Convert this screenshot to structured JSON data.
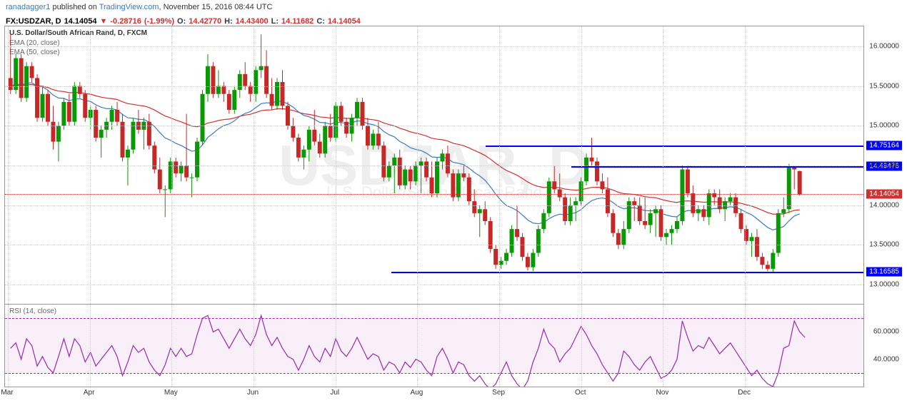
{
  "header": {
    "author": "ranadagger1",
    "middle": " published on ",
    "site": "TradingView.com",
    "dateTail": ", November 15, 2016 08:44 UTC"
  },
  "ticker": {
    "symbol": "FX:USDZAR, D",
    "price": "14.14054",
    "change": "-0.28716",
    "changePct": "(-1.99%)",
    "O": "14.42770",
    "H": "14.43400",
    "L": "14.11682",
    "C": "14.14054"
  },
  "mainChart": {
    "title": "U.S. Dollar/South African Rand, D, FXCM",
    "ema1": "EMA (20, close)",
    "ema2": "EMA (50, close)",
    "watermark": "USDZAR, D",
    "watermarkSub": "U.S. Dollar/South African Rand",
    "yTicks": [
      13.0,
      13.5,
      14.0,
      14.5,
      15.0,
      15.5,
      16.0
    ],
    "ylim": [
      12.75,
      16.25
    ],
    "currentPrice": 14.14054,
    "hlines": [
      {
        "value": 14.75164,
        "startX": 0.56
      },
      {
        "value": 14.49476,
        "startX": 0.66
      },
      {
        "value": 13.16585,
        "startX": 0.45
      }
    ],
    "colors": {
      "up": "#089904",
      "down": "#c62828",
      "ema20": "#3b7bbf",
      "ema50": "#d32f2f"
    },
    "candles": [
      {
        "o": 15.6,
        "h": 16.15,
        "l": 15.4,
        "c": 15.45
      },
      {
        "o": 15.45,
        "h": 15.9,
        "l": 15.4,
        "c": 15.85
      },
      {
        "o": 15.85,
        "h": 15.9,
        "l": 15.3,
        "c": 15.35
      },
      {
        "o": 15.35,
        "h": 15.8,
        "l": 15.3,
        "c": 15.75
      },
      {
        "o": 15.75,
        "h": 15.8,
        "l": 15.55,
        "c": 15.6
      },
      {
        "o": 15.6,
        "h": 15.65,
        "l": 15.05,
        "c": 15.1
      },
      {
        "o": 15.1,
        "h": 15.5,
        "l": 15.05,
        "c": 15.4
      },
      {
        "o": 15.4,
        "h": 15.45,
        "l": 15.0,
        "c": 15.05
      },
      {
        "o": 15.05,
        "h": 15.25,
        "l": 14.7,
        "c": 14.8
      },
      {
        "o": 14.8,
        "h": 15.05,
        "l": 14.55,
        "c": 15.0
      },
      {
        "o": 15.0,
        "h": 15.35,
        "l": 14.95,
        "c": 15.3
      },
      {
        "o": 15.3,
        "h": 15.4,
        "l": 15.0,
        "c": 15.05
      },
      {
        "o": 15.05,
        "h": 15.55,
        "l": 15.0,
        "c": 15.5
      },
      {
        "o": 15.5,
        "h": 15.55,
        "l": 15.35,
        "c": 15.4
      },
      {
        "o": 15.4,
        "h": 15.45,
        "l": 15.05,
        "c": 15.1
      },
      {
        "o": 15.1,
        "h": 15.25,
        "l": 14.95,
        "c": 15.2
      },
      {
        "o": 15.2,
        "h": 15.25,
        "l": 14.8,
        "c": 14.85
      },
      {
        "o": 14.85,
        "h": 15.0,
        "l": 14.6,
        "c": 14.95
      },
      {
        "o": 14.95,
        "h": 15.1,
        "l": 14.85,
        "c": 15.05
      },
      {
        "o": 15.05,
        "h": 15.25,
        "l": 14.95,
        "c": 15.2
      },
      {
        "o": 15.2,
        "h": 15.3,
        "l": 15.0,
        "c": 15.05
      },
      {
        "o": 15.05,
        "h": 15.15,
        "l": 14.55,
        "c": 14.6
      },
      {
        "o": 14.6,
        "h": 14.75,
        "l": 14.25,
        "c": 14.7
      },
      {
        "o": 14.7,
        "h": 15.1,
        "l": 14.65,
        "c": 15.05
      },
      {
        "o": 15.05,
        "h": 15.2,
        "l": 14.9,
        "c": 14.95
      },
      {
        "o": 14.95,
        "h": 15.1,
        "l": 14.7,
        "c": 15.05
      },
      {
        "o": 15.05,
        "h": 15.15,
        "l": 14.7,
        "c": 14.75
      },
      {
        "o": 14.75,
        "h": 14.8,
        "l": 14.4,
        "c": 14.45
      },
      {
        "o": 14.45,
        "h": 14.6,
        "l": 14.15,
        "c": 14.2
      },
      {
        "o": 14.2,
        "h": 14.25,
        "l": 13.85,
        "c": 14.2
      },
      {
        "o": 14.2,
        "h": 14.6,
        "l": 14.15,
        "c": 14.55
      },
      {
        "o": 14.55,
        "h": 14.6,
        "l": 14.35,
        "c": 14.4
      },
      {
        "o": 14.4,
        "h": 14.55,
        "l": 14.3,
        "c": 14.5
      },
      {
        "o": 14.5,
        "h": 15.15,
        "l": 14.3,
        "c": 14.35
      },
      {
        "o": 14.35,
        "h": 14.4,
        "l": 14.1,
        "c": 14.35
      },
      {
        "o": 14.35,
        "h": 14.85,
        "l": 14.3,
        "c": 14.8
      },
      {
        "o": 14.8,
        "h": 15.45,
        "l": 14.75,
        "c": 15.4
      },
      {
        "o": 15.4,
        "h": 15.9,
        "l": 15.3,
        "c": 15.75
      },
      {
        "o": 15.75,
        "h": 15.8,
        "l": 15.35,
        "c": 15.4
      },
      {
        "o": 15.4,
        "h": 15.7,
        "l": 15.35,
        "c": 15.5
      },
      {
        "o": 15.5,
        "h": 15.55,
        "l": 15.3,
        "c": 15.4
      },
      {
        "o": 15.4,
        "h": 15.45,
        "l": 15.15,
        "c": 15.2
      },
      {
        "o": 15.2,
        "h": 15.5,
        "l": 15.15,
        "c": 15.45
      },
      {
        "o": 15.45,
        "h": 15.7,
        "l": 15.35,
        "c": 15.65
      },
      {
        "o": 15.65,
        "h": 15.8,
        "l": 15.45,
        "c": 15.5
      },
      {
        "o": 15.5,
        "h": 15.55,
        "l": 15.3,
        "c": 15.4
      },
      {
        "o": 15.4,
        "h": 15.75,
        "l": 15.3,
        "c": 15.7
      },
      {
        "o": 15.7,
        "h": 16.15,
        "l": 15.6,
        "c": 15.75
      },
      {
        "o": 15.75,
        "h": 15.95,
        "l": 15.35,
        "c": 15.4
      },
      {
        "o": 15.4,
        "h": 15.6,
        "l": 15.2,
        "c": 15.25
      },
      {
        "o": 15.25,
        "h": 15.6,
        "l": 15.2,
        "c": 15.55
      },
      {
        "o": 15.55,
        "h": 15.7,
        "l": 15.2,
        "c": 15.25
      },
      {
        "o": 15.25,
        "h": 15.3,
        "l": 14.95,
        "c": 15.0
      },
      {
        "o": 15.0,
        "h": 15.1,
        "l": 14.8,
        "c": 14.85
      },
      {
        "o": 14.85,
        "h": 14.9,
        "l": 14.55,
        "c": 14.6
      },
      {
        "o": 14.6,
        "h": 14.75,
        "l": 14.45,
        "c": 14.7
      },
      {
        "o": 14.7,
        "h": 15.0,
        "l": 14.55,
        "c": 14.95
      },
      {
        "o": 14.95,
        "h": 15.2,
        "l": 14.75,
        "c": 14.8
      },
      {
        "o": 14.8,
        "h": 14.9,
        "l": 14.6,
        "c": 14.65
      },
      {
        "o": 14.65,
        "h": 15.05,
        "l": 14.6,
        "c": 15.0
      },
      {
        "o": 15.0,
        "h": 15.15,
        "l": 14.8,
        "c": 14.85
      },
      {
        "o": 14.85,
        "h": 15.3,
        "l": 14.8,
        "c": 15.25
      },
      {
        "o": 15.25,
        "h": 15.3,
        "l": 15.0,
        "c": 15.05
      },
      {
        "o": 15.05,
        "h": 15.1,
        "l": 14.85,
        "c": 14.9
      },
      {
        "o": 14.9,
        "h": 15.15,
        "l": 14.8,
        "c": 15.1
      },
      {
        "o": 15.1,
        "h": 15.35,
        "l": 15.0,
        "c": 15.3
      },
      {
        "o": 15.3,
        "h": 15.35,
        "l": 14.95,
        "c": 15.0
      },
      {
        "o": 15.0,
        "h": 15.1,
        "l": 14.7,
        "c": 14.75
      },
      {
        "o": 14.75,
        "h": 14.95,
        "l": 14.7,
        "c": 14.9
      },
      {
        "o": 14.9,
        "h": 15.05,
        "l": 14.7,
        "c": 14.75
      },
      {
        "o": 14.75,
        "h": 14.8,
        "l": 14.3,
        "c": 14.35
      },
      {
        "o": 14.35,
        "h": 14.55,
        "l": 14.3,
        "c": 14.5
      },
      {
        "o": 14.5,
        "h": 14.65,
        "l": 14.15,
        "c": 14.6
      },
      {
        "o": 14.6,
        "h": 14.7,
        "l": 14.2,
        "c": 14.25
      },
      {
        "o": 14.25,
        "h": 14.5,
        "l": 14.2,
        "c": 14.45
      },
      {
        "o": 14.45,
        "h": 14.5,
        "l": 14.2,
        "c": 14.3
      },
      {
        "o": 14.3,
        "h": 14.55,
        "l": 14.25,
        "c": 14.5
      },
      {
        "o": 14.5,
        "h": 14.6,
        "l": 14.15,
        "c": 14.55
      },
      {
        "o": 14.55,
        "h": 14.6,
        "l": 14.3,
        "c": 14.35
      },
      {
        "o": 14.35,
        "h": 14.55,
        "l": 14.1,
        "c": 14.15
      },
      {
        "o": 14.15,
        "h": 14.6,
        "l": 14.1,
        "c": 14.55
      },
      {
        "o": 14.55,
        "h": 14.7,
        "l": 14.45,
        "c": 14.65
      },
      {
        "o": 14.65,
        "h": 14.75,
        "l": 14.35,
        "c": 14.4
      },
      {
        "o": 14.4,
        "h": 14.45,
        "l": 14.05,
        "c": 14.1
      },
      {
        "o": 14.1,
        "h": 14.45,
        "l": 14.05,
        "c": 14.4
      },
      {
        "o": 14.4,
        "h": 14.5,
        "l": 14.3,
        "c": 14.35
      },
      {
        "o": 14.35,
        "h": 14.4,
        "l": 14.0,
        "c": 14.05
      },
      {
        "o": 14.05,
        "h": 14.2,
        "l": 13.85,
        "c": 13.9
      },
      {
        "o": 13.9,
        "h": 14.0,
        "l": 13.6,
        "c": 13.95
      },
      {
        "o": 13.95,
        "h": 14.05,
        "l": 13.75,
        "c": 13.8
      },
      {
        "o": 13.8,
        "h": 13.85,
        "l": 13.4,
        "c": 13.45
      },
      {
        "o": 13.45,
        "h": 13.5,
        "l": 13.2,
        "c": 13.25
      },
      {
        "o": 13.25,
        "h": 13.35,
        "l": 13.2,
        "c": 13.3
      },
      {
        "o": 13.3,
        "h": 13.45,
        "l": 13.25,
        "c": 13.4
      },
      {
        "o": 13.4,
        "h": 13.75,
        "l": 13.35,
        "c": 13.7
      },
      {
        "o": 13.7,
        "h": 14.0,
        "l": 13.55,
        "c": 13.6
      },
      {
        "o": 13.6,
        "h": 13.65,
        "l": 13.3,
        "c": 13.35
      },
      {
        "o": 13.35,
        "h": 13.4,
        "l": 13.18,
        "c": 13.22
      },
      {
        "o": 13.22,
        "h": 13.45,
        "l": 13.17,
        "c": 13.4
      },
      {
        "o": 13.4,
        "h": 13.75,
        "l": 13.35,
        "c": 13.7
      },
      {
        "o": 13.7,
        "h": 13.95,
        "l": 13.65,
        "c": 13.9
      },
      {
        "o": 13.9,
        "h": 14.35,
        "l": 13.85,
        "c": 14.3
      },
      {
        "o": 14.3,
        "h": 14.5,
        "l": 14.15,
        "c": 14.2
      },
      {
        "o": 14.2,
        "h": 14.4,
        "l": 14.05,
        "c": 14.1
      },
      {
        "o": 14.1,
        "h": 14.15,
        "l": 13.75,
        "c": 13.8
      },
      {
        "o": 13.8,
        "h": 14.1,
        "l": 13.75,
        "c": 14.0
      },
      {
        "o": 14.0,
        "h": 14.1,
        "l": 13.8,
        "c": 14.05
      },
      {
        "o": 14.05,
        "h": 14.35,
        "l": 14.0,
        "c": 14.3
      },
      {
        "o": 14.3,
        "h": 14.65,
        "l": 14.25,
        "c": 14.6
      },
      {
        "o": 14.6,
        "h": 14.85,
        "l": 14.5,
        "c": 14.55
      },
      {
        "o": 14.55,
        "h": 14.6,
        "l": 14.25,
        "c": 14.3
      },
      {
        "o": 14.3,
        "h": 14.4,
        "l": 14.15,
        "c": 14.2
      },
      {
        "o": 14.2,
        "h": 14.35,
        "l": 13.85,
        "c": 13.9
      },
      {
        "o": 13.9,
        "h": 13.95,
        "l": 13.6,
        "c": 13.65
      },
      {
        "o": 13.65,
        "h": 13.7,
        "l": 13.45,
        "c": 13.5
      },
      {
        "o": 13.5,
        "h": 13.8,
        "l": 13.45,
        "c": 13.7
      },
      {
        "o": 13.7,
        "h": 14.1,
        "l": 13.65,
        "c": 14.05
      },
      {
        "o": 14.05,
        "h": 14.1,
        "l": 13.8,
        "c": 14.0
      },
      {
        "o": 14.0,
        "h": 14.1,
        "l": 13.75,
        "c": 13.8
      },
      {
        "o": 13.8,
        "h": 14.1,
        "l": 13.7,
        "c": 13.75
      },
      {
        "o": 13.75,
        "h": 13.95,
        "l": 13.65,
        "c": 13.9
      },
      {
        "o": 13.9,
        "h": 14.0,
        "l": 13.6,
        "c": 13.95
      },
      {
        "o": 13.95,
        "h": 14.0,
        "l": 13.55,
        "c": 13.6
      },
      {
        "o": 13.6,
        "h": 13.7,
        "l": 13.5,
        "c": 13.65
      },
      {
        "o": 13.65,
        "h": 13.75,
        "l": 13.5,
        "c": 13.7
      },
      {
        "o": 13.7,
        "h": 13.85,
        "l": 13.65,
        "c": 13.8
      },
      {
        "o": 13.8,
        "h": 14.5,
        "l": 13.75,
        "c": 14.45
      },
      {
        "o": 14.45,
        "h": 14.5,
        "l": 14.1,
        "c": 14.15
      },
      {
        "o": 14.15,
        "h": 14.25,
        "l": 13.85,
        "c": 13.9
      },
      {
        "o": 13.9,
        "h": 14.0,
        "l": 13.8,
        "c": 13.95
      },
      {
        "o": 13.95,
        "h": 14.0,
        "l": 13.8,
        "c": 13.85
      },
      {
        "o": 13.85,
        "h": 14.2,
        "l": 13.75,
        "c": 14.15
      },
      {
        "o": 14.15,
        "h": 14.2,
        "l": 14.0,
        "c": 14.1
      },
      {
        "o": 14.1,
        "h": 14.2,
        "l": 13.9,
        "c": 13.95
      },
      {
        "o": 13.95,
        "h": 14.1,
        "l": 13.8,
        "c": 14.05
      },
      {
        "o": 14.05,
        "h": 14.15,
        "l": 14.0,
        "c": 14.1
      },
      {
        "o": 14.1,
        "h": 14.15,
        "l": 13.85,
        "c": 13.9
      },
      {
        "o": 13.9,
        "h": 13.95,
        "l": 13.65,
        "c": 13.7
      },
      {
        "o": 13.7,
        "h": 13.75,
        "l": 13.5,
        "c": 13.55
      },
      {
        "o": 13.55,
        "h": 13.65,
        "l": 13.35,
        "c": 13.6
      },
      {
        "o": 13.6,
        "h": 13.7,
        "l": 13.3,
        "c": 13.35
      },
      {
        "o": 13.35,
        "h": 13.4,
        "l": 13.2,
        "c": 13.25
      },
      {
        "o": 13.25,
        "h": 13.3,
        "l": 13.17,
        "c": 13.2
      },
      {
        "o": 13.2,
        "h": 13.45,
        "l": 13.15,
        "c": 13.4
      },
      {
        "o": 13.4,
        "h": 13.95,
        "l": 13.35,
        "c": 13.9
      },
      {
        "o": 13.9,
        "h": 14.1,
        "l": 13.85,
        "c": 13.95
      },
      {
        "o": 13.95,
        "h": 14.52,
        "l": 13.9,
        "c": 14.48
      },
      {
        "o": 14.48,
        "h": 14.5,
        "l": 14.2,
        "c": 14.45
      },
      {
        "o": 14.43,
        "h": 14.434,
        "l": 14.12,
        "c": 14.14
      }
    ],
    "ema20Start": 15.5,
    "ema50Start": 15.5
  },
  "xTicks": [
    "Mar",
    "Apr",
    "May",
    "Jun",
    "Jul",
    "Aug",
    "Sep",
    "Oct",
    "Nov",
    "Dec"
  ],
  "rsi": {
    "label": "RSI (14, close)",
    "yTicks": [
      40.0,
      60.0
    ],
    "ylim": [
      20,
      80
    ],
    "band": [
      30,
      70
    ],
    "color": "#9c27b0",
    "values": [
      48,
      52,
      40,
      55,
      50,
      35,
      42,
      34,
      30,
      42,
      55,
      42,
      55,
      50,
      38,
      45,
      35,
      40,
      45,
      50,
      42,
      28,
      38,
      50,
      45,
      48,
      38,
      32,
      28,
      36,
      48,
      42,
      48,
      42,
      44,
      58,
      70,
      72,
      60,
      62,
      55,
      48,
      55,
      62,
      55,
      50,
      58,
      72,
      58,
      50,
      56,
      48,
      42,
      40,
      32,
      40,
      50,
      42,
      38,
      48,
      42,
      55,
      46,
      42,
      48,
      56,
      48,
      40,
      44,
      42,
      32,
      38,
      36,
      30,
      38,
      34,
      40,
      38,
      32,
      28,
      42,
      48,
      40,
      30,
      38,
      36,
      28,
      24,
      28,
      22,
      18,
      22,
      30,
      38,
      28,
      22,
      18,
      24,
      38,
      48,
      62,
      52,
      48,
      38,
      44,
      48,
      56,
      64,
      58,
      50,
      44,
      36,
      30,
      24,
      30,
      46,
      42,
      36,
      32,
      38,
      42,
      34,
      26,
      28,
      32,
      40,
      68,
      56,
      46,
      50,
      48,
      56,
      50,
      44,
      48,
      52,
      46,
      40,
      34,
      28,
      32,
      26,
      22,
      20,
      30,
      48,
      50,
      68,
      60,
      56
    ]
  }
}
